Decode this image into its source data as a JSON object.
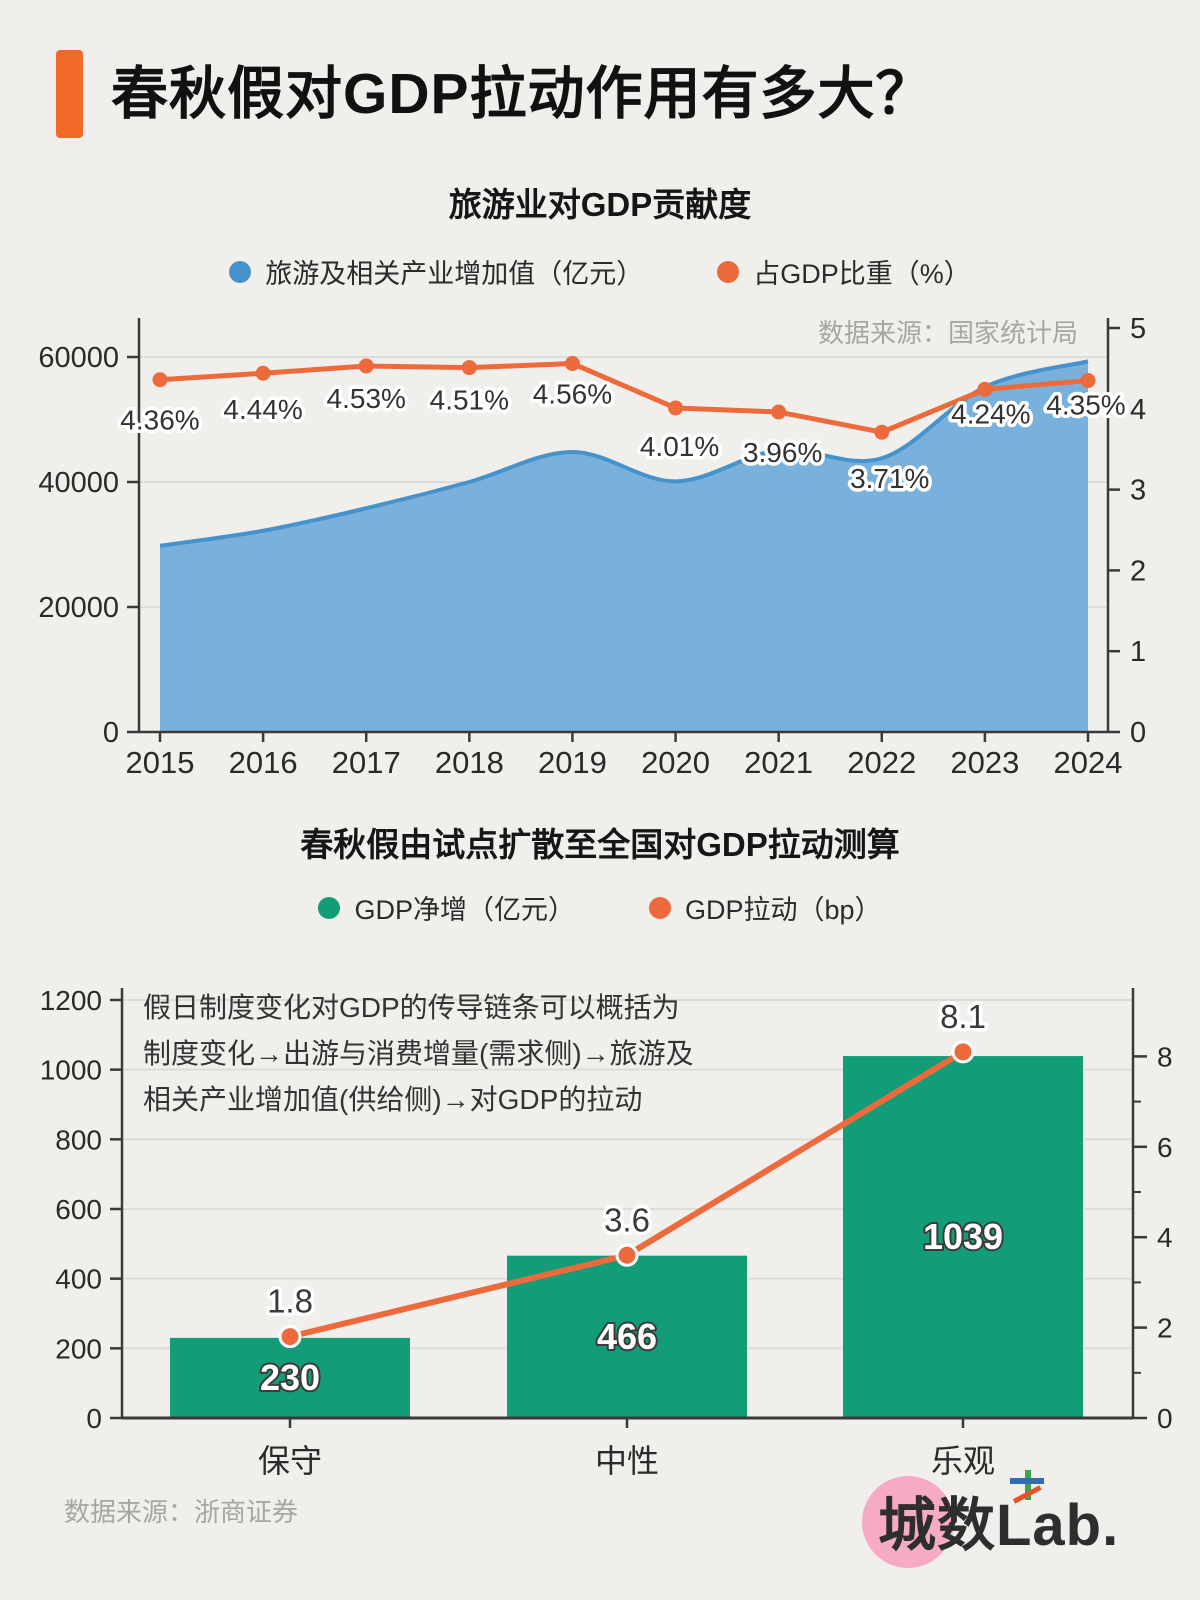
{
  "page": {
    "title": "春秋假对GDP拉动作用有多大？",
    "footer_source": "数据来源：浙商证券",
    "logo_text": "城数Lab.",
    "colors": {
      "accent_orange": "#f2692a",
      "blue_fill": "#79b1dc",
      "blue_edge": "#4592cc",
      "orange_line": "#ed6a3c",
      "green_bar": "#129c77",
      "pink_logo": "#f7aac6",
      "source_gray": "#a8a6a3",
      "axis_dark": "#3a3a3a",
      "grid_gray": "#dedcd8"
    }
  },
  "chart_data": [
    {
      "type": "area",
      "title": "旅游业对GDP贡献度",
      "source": "数据来源：国家统计局",
      "legend": [
        "旅游及相关产业增加值（亿元）",
        "占GDP比重（%）"
      ],
      "categories": [
        "2015",
        "2016",
        "2017",
        "2018",
        "2019",
        "2020",
        "2021",
        "2022",
        "2023",
        "2024"
      ],
      "series": [
        {
          "name": "旅游及相关产业增加值（亿元）",
          "type": "area",
          "axis": "left",
          "values": [
            29800,
            32200,
            35800,
            40000,
            44800,
            40100,
            45100,
            43800,
            55200,
            59300
          ]
        },
        {
          "name": "占GDP比重（%）",
          "type": "line",
          "axis": "right",
          "values": [
            4.36,
            4.44,
            4.53,
            4.51,
            4.56,
            4.01,
            3.96,
            3.71,
            4.24,
            4.35
          ],
          "labels": [
            "4.36%",
            "4.44%",
            "4.53%",
            "4.51%",
            "4.56%",
            "4.01%",
            "3.96%",
            "3.71%",
            "4.24%",
            "4.35%"
          ]
        }
      ],
      "left_axis": {
        "min": 0,
        "max": 60000,
        "ticks": [
          0,
          20000,
          40000,
          60000
        ],
        "tick_labels": [
          "0",
          "20000",
          "40000",
          "60000"
        ]
      },
      "right_axis": {
        "min": 0,
        "max": 5,
        "ticks": [
          0,
          1,
          2,
          3,
          4,
          5
        ],
        "tick_labels": [
          "0",
          "1",
          "2",
          "3",
          "4",
          "5"
        ]
      },
      "grid": true,
      "legend_position": "top"
    },
    {
      "type": "bar",
      "title": "春秋假由试点扩散至全国对GDP拉动测算",
      "legend": [
        "GDP净增（亿元）",
        "GDP拉动（bp）"
      ],
      "categories": [
        "保守",
        "中性",
        "乐观"
      ],
      "series": [
        {
          "name": "GDP净增（亿元）",
          "type": "bar",
          "axis": "left",
          "values": [
            230,
            466,
            1039
          ],
          "labels": [
            "230",
            "466",
            "1039"
          ]
        },
        {
          "name": "GDP拉动（bp）",
          "type": "line",
          "axis": "right",
          "values": [
            1.8,
            3.6,
            8.1
          ],
          "labels": [
            "1.8",
            "3.6",
            "8.1"
          ]
        }
      ],
      "left_axis": {
        "min": 0,
        "max": 1200,
        "ticks": [
          0,
          200,
          400,
          600,
          800,
          1000,
          1200
        ],
        "tick_labels": [
          "0",
          "200",
          "400",
          "600",
          "800",
          "1000",
          "1200"
        ]
      },
      "right_axis": {
        "min": 0,
        "max": 8,
        "ticks": [
          0,
          2,
          4,
          6,
          8
        ],
        "tick_labels": [
          "0",
          "2",
          "4",
          "6",
          "8"
        ],
        "minor_ticks": [
          1,
          3,
          5,
          7
        ]
      },
      "annotation": [
        "假日制度变化对GDP的传导链条可以概括为",
        "制度变化→出游与消费增量(需求侧)→旅游及",
        "相关产业增加值(供给侧)→对GDP的拉动"
      ],
      "grid": true,
      "legend_position": "top"
    }
  ]
}
